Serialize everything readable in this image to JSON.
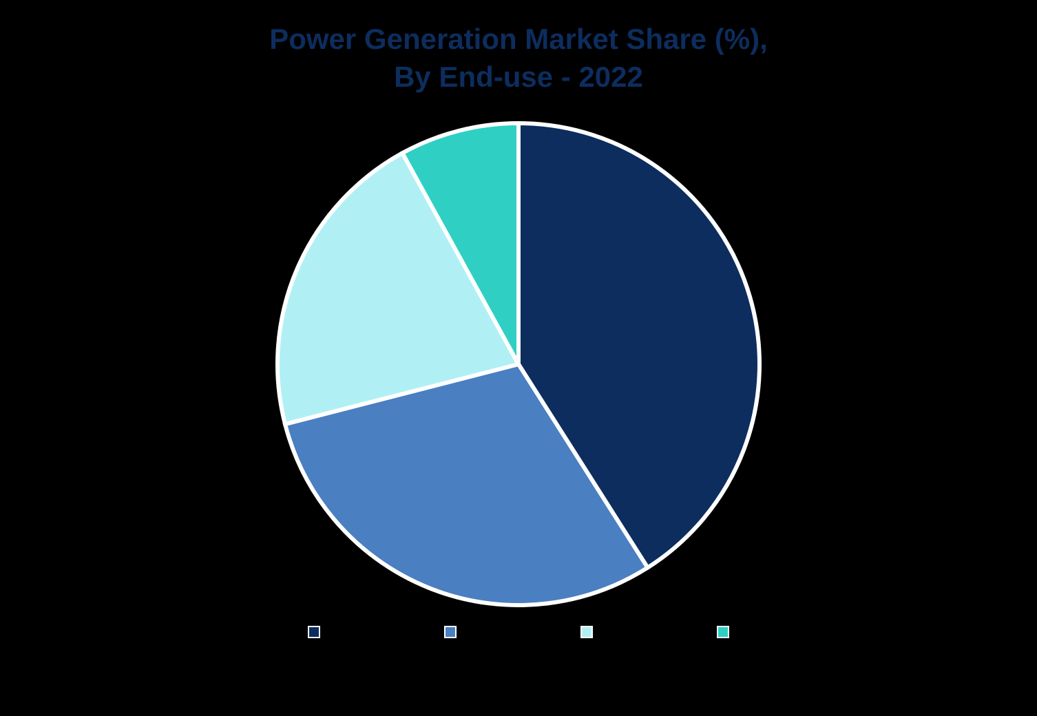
{
  "chart": {
    "type": "pie",
    "title_line1": "Power Generation Market Share (%),",
    "title_line2": "By End-use - 2022",
    "title_color": "#0d2d5e",
    "title_fontsize": 42,
    "background_color": "#000000",
    "slice_stroke": "#ffffff",
    "slice_stroke_width": 6,
    "slices": [
      {
        "value": 41,
        "color": "#0d2d5e"
      },
      {
        "value": 30,
        "color": "#4a7fc1"
      },
      {
        "value": 21,
        "color": "#b0f0f5"
      },
      {
        "value": 8,
        "color": "#2fcfc4"
      }
    ],
    "legend_swatch_border": "#ffffff"
  }
}
